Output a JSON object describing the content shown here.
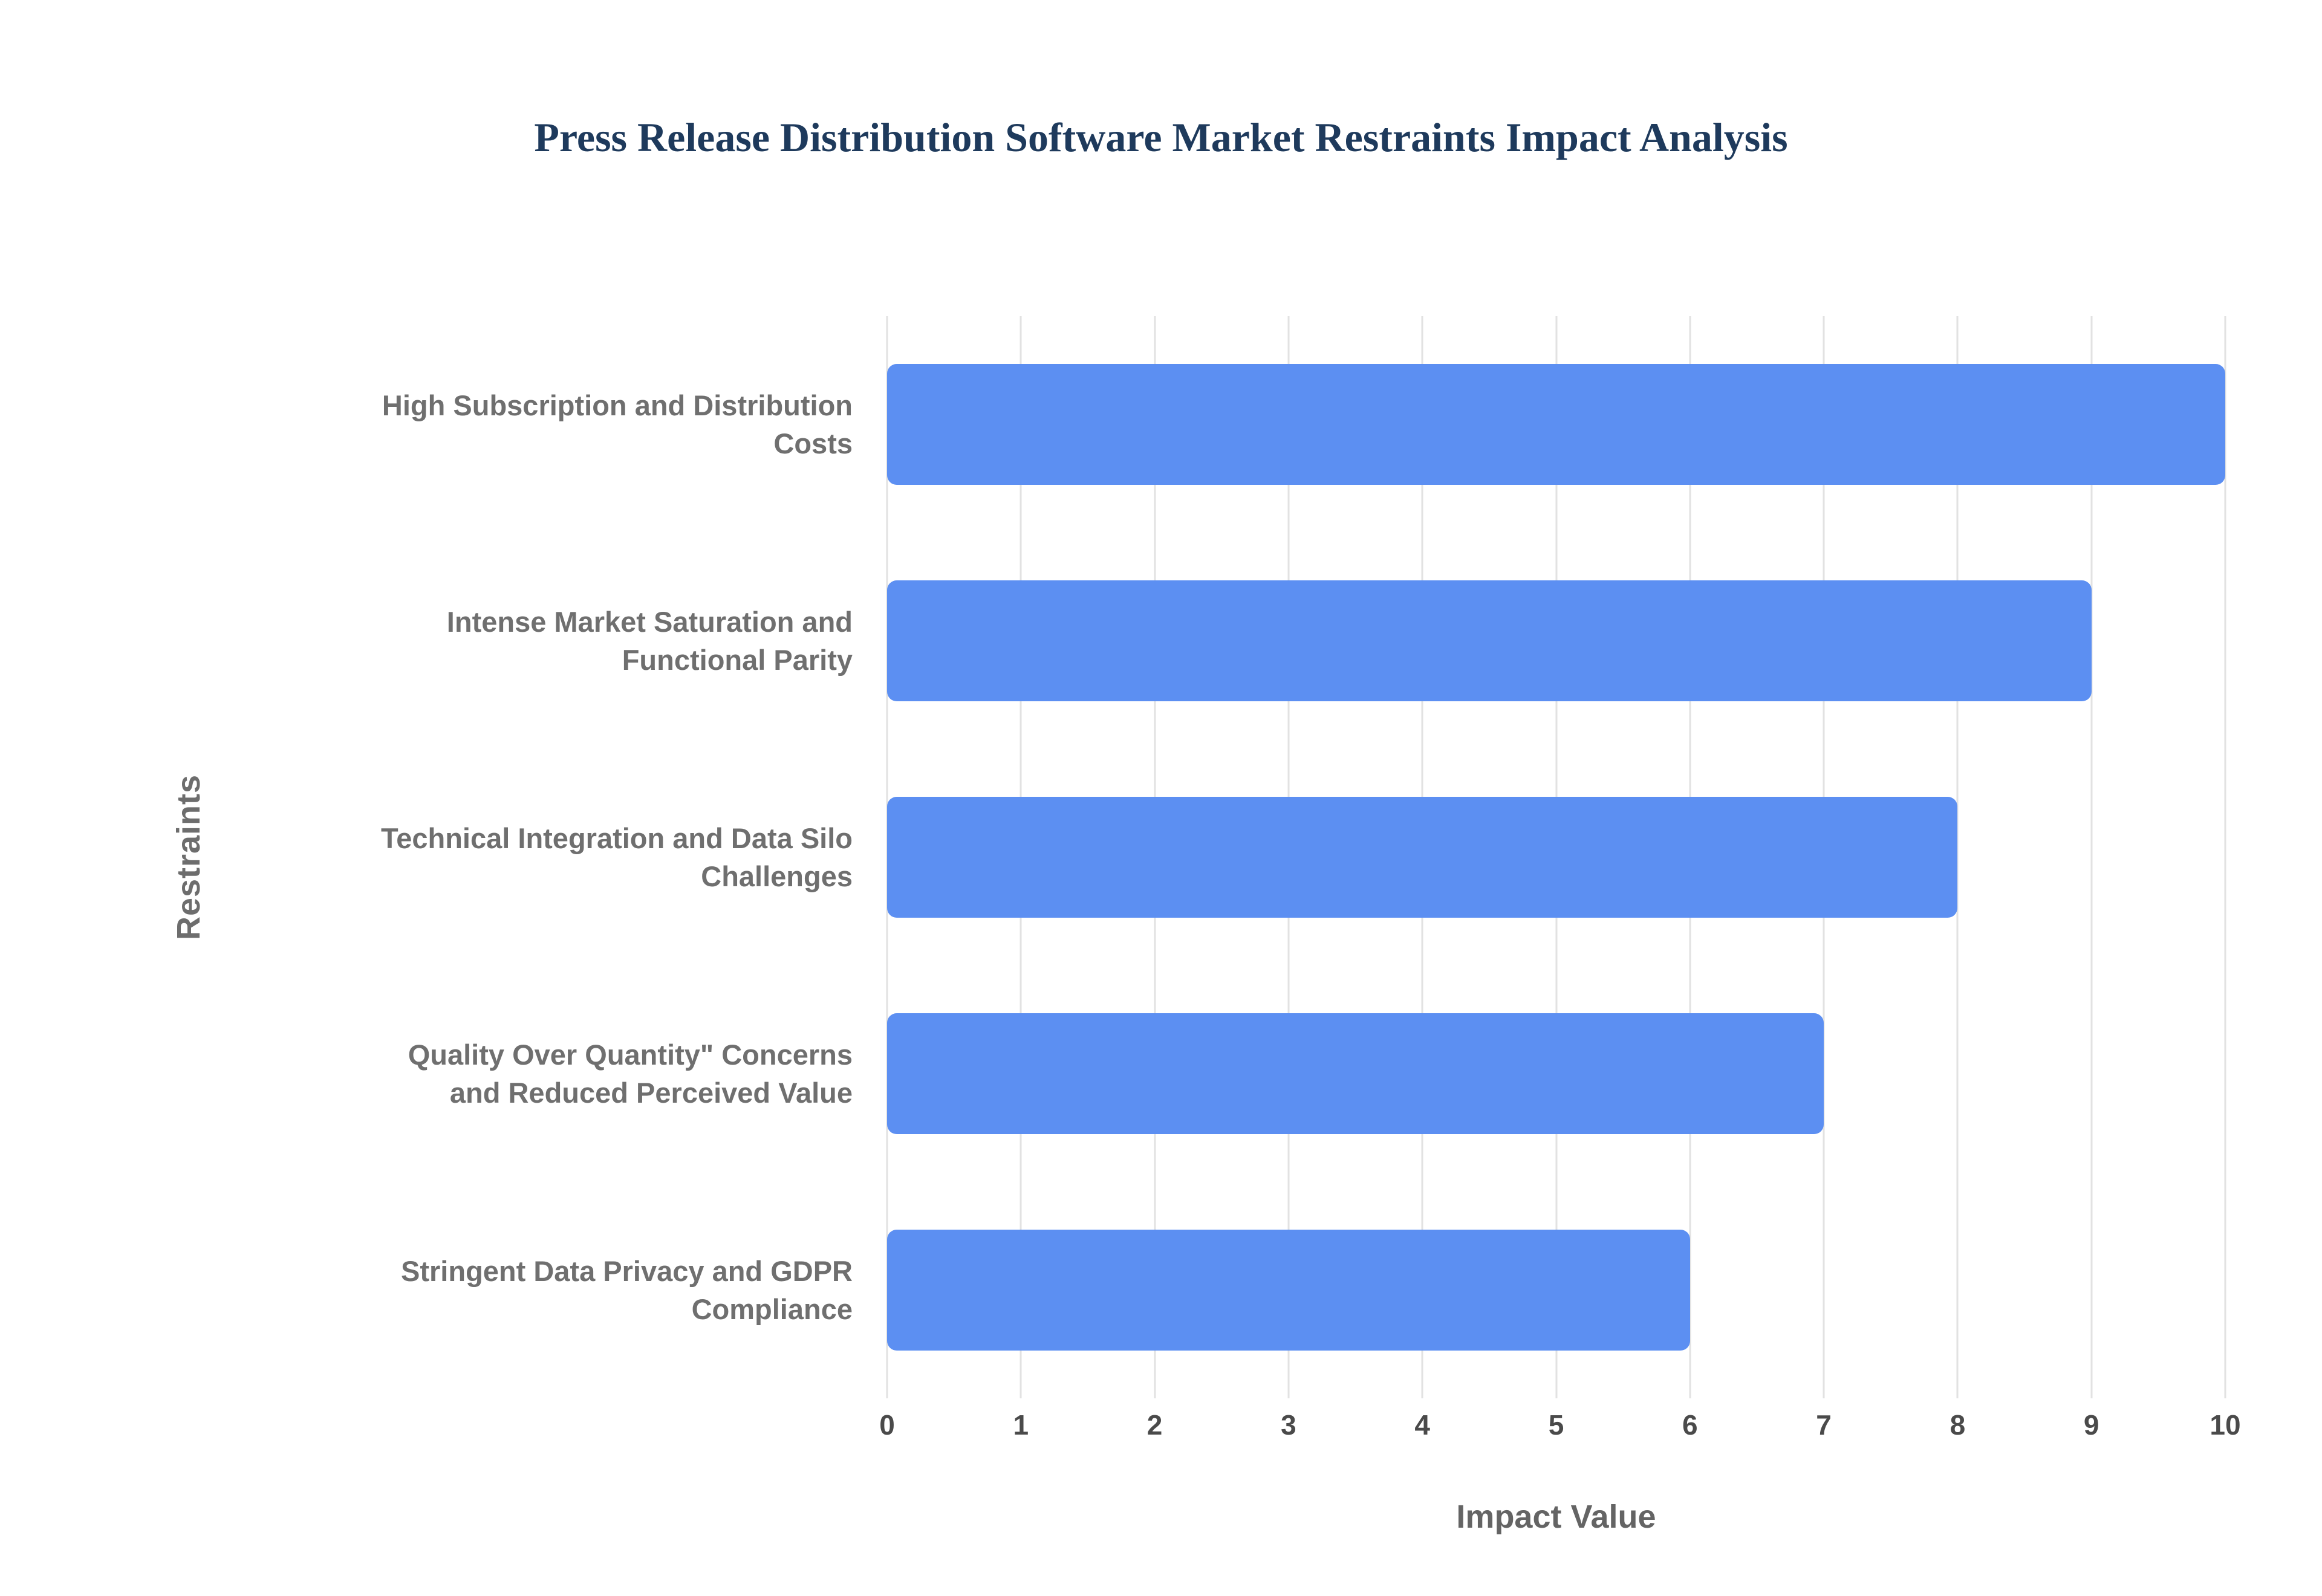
{
  "chart_data": {
    "type": "bar",
    "orientation": "horizontal",
    "title": "Press Release Distribution Software Market Restraints Impact Analysis",
    "categories": [
      "High Subscription and Distribution Costs",
      "Intense Market Saturation and Functional Parity",
      "Technical Integration and Data Silo Challenges",
      "Quality Over Quantity\" Concerns and Reduced Perceived Value",
      "Stringent Data Privacy and GDPR Compliance"
    ],
    "values": [
      10,
      9,
      8,
      7,
      6
    ],
    "xlabel": "Impact Value",
    "ylabel": "Restraints",
    "xlim": [
      0,
      10
    ],
    "xticks": [
      0,
      1,
      2,
      3,
      4,
      5,
      6,
      7,
      8,
      9,
      10
    ],
    "grid": true,
    "legend": "none",
    "bar_color": "#5c8ff2",
    "gridline_color": "#e2e2e2",
    "title_color": "#1e3a5c",
    "label_color": "#6f6f6f"
  }
}
